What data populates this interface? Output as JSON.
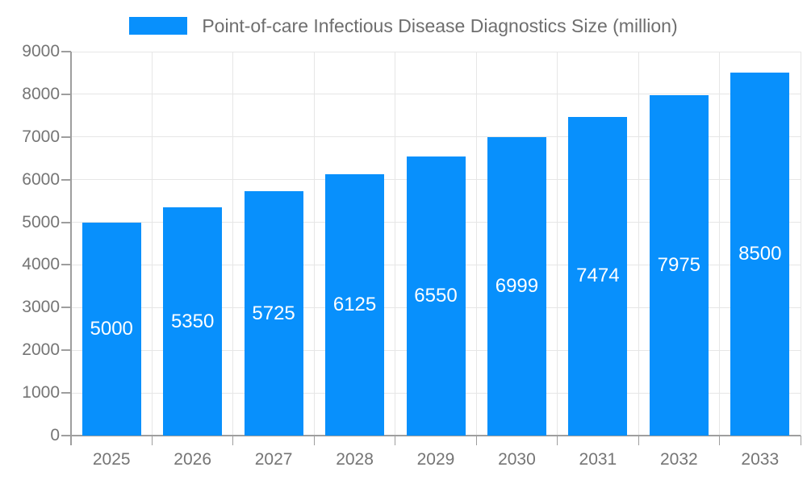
{
  "legend": {
    "label": "Point-of-care Infectious Disease Diagnostics Size (million)"
  },
  "chart_data": {
    "type": "bar",
    "title": "Point-of-care Infectious Disease Diagnostics Size (million)",
    "categories": [
      "2025",
      "2026",
      "2027",
      "2028",
      "2029",
      "2030",
      "2031",
      "2032",
      "2033"
    ],
    "values": [
      5000,
      5350,
      5725,
      6125,
      6550,
      6999,
      7474,
      7975,
      8500
    ],
    "xlabel": "",
    "ylabel": "",
    "ylim": [
      0,
      9000
    ],
    "yticks": [
      0,
      1000,
      2000,
      3000,
      4000,
      5000,
      6000,
      7000,
      8000,
      9000
    ],
    "grid": true,
    "legend_position": "top",
    "bar_value_labels": "inside-center"
  },
  "colors": {
    "bar": "#0890fc",
    "bar_label": "#ffffff",
    "axis_line": "#9e9e9e",
    "gridline": "#e6e6e6",
    "tick_label": "#757575",
    "title_text": "#6e6e6e",
    "background": "#ffffff"
  }
}
